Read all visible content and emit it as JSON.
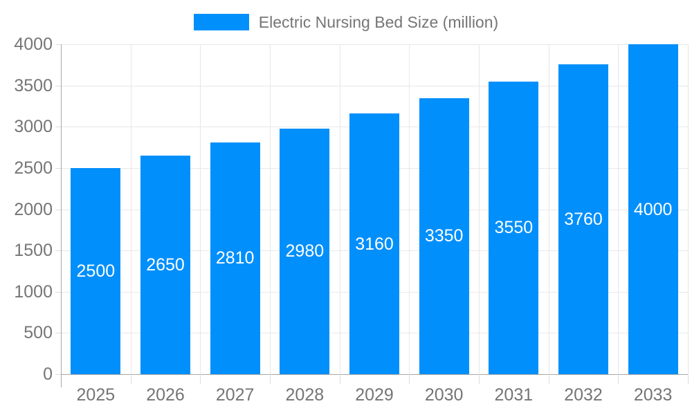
{
  "legend": {
    "label": "Electric Nursing Bed Size (million)",
    "swatch_color": "#008FFB"
  },
  "chart_data": {
    "type": "bar",
    "title": "Electric Nursing Bed Size (million)",
    "series_name": "Electric Nursing Bed Size (million)",
    "categories": [
      "2025",
      "2026",
      "2027",
      "2028",
      "2029",
      "2030",
      "2031",
      "2032",
      "2033"
    ],
    "values": [
      2500,
      2650,
      2810,
      2980,
      3160,
      3350,
      3550,
      3760,
      4000
    ],
    "xlabel": "",
    "ylabel": "",
    "ylim": [
      0,
      4000
    ],
    "y_ticks": [
      0,
      500,
      1000,
      1500,
      2000,
      2500,
      3000,
      3500,
      4000
    ],
    "grid": true,
    "legend_position": "top",
    "bar_color": "#008FFB",
    "value_label_color": "#ffffff",
    "value_label_position": "middle",
    "axis_label_color": "#757575",
    "gridline_color": "#e7e7e7",
    "axis_line_color": "#a8a8a8"
  }
}
